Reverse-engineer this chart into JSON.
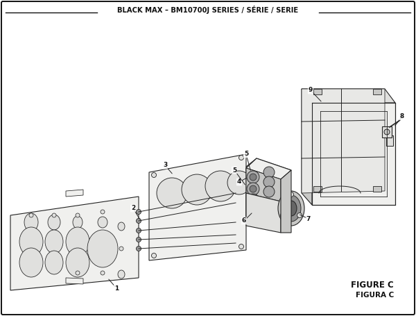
{
  "title": "BLACK MAX – BM10700J SERIES / SÉRIE / SERIE",
  "figure_label": "FIGURE C",
  "figura_label": "FIGURA C",
  "bg_color": "#ffffff",
  "border_color": "#111111",
  "line_color": "#222222",
  "fill_light": "#f0f0ee",
  "fill_mid": "#e0e0de",
  "fill_dark": "#c8c8c6",
  "figsize": [
    6.0,
    4.55
  ],
  "dpi": 100
}
